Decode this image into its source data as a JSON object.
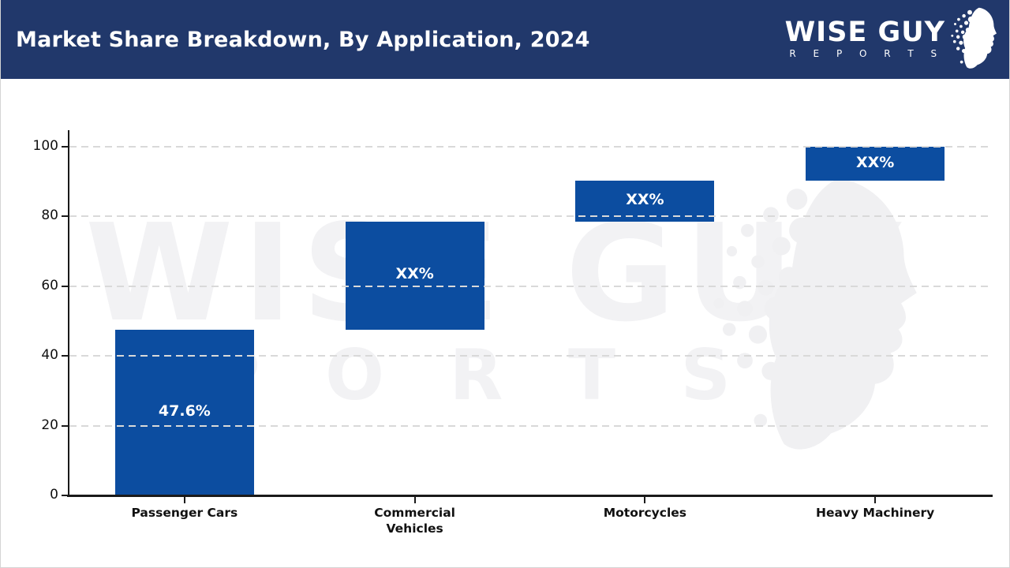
{
  "header": {
    "title": "Market Share Breakdown, By Application, 2024",
    "bg_color": "#21386b",
    "logo": {
      "line1": "WISE GUY",
      "line2": "R E P O R T S"
    }
  },
  "watermark": {
    "line1": "WISE GUY",
    "line2": "P O R T S"
  },
  "chart_data": {
    "type": "bar",
    "subtype": "waterfall",
    "title": "Market Share Breakdown, By Application, 2024",
    "categories": [
      "Passenger Cars",
      "Commercial\nVehicles",
      "Motorcycles",
      "Heavy Machinery"
    ],
    "segments": [
      {
        "category": "Passenger Cars",
        "start": 0,
        "end": 47.6,
        "label": "47.6%"
      },
      {
        "category": "Commercial Vehicles",
        "start": 47.6,
        "end": 78.5,
        "label": "XX%"
      },
      {
        "category": "Motorcycles",
        "start": 78.5,
        "end": 90.2,
        "label": "XX%"
      },
      {
        "category": "Heavy Machinery",
        "start": 90.2,
        "end": 100,
        "label": "XX%"
      }
    ],
    "xlabel": "",
    "ylabel": "",
    "ylim": [
      0,
      100
    ],
    "yticks": [
      0,
      20,
      40,
      60,
      80,
      100
    ],
    "grid": "horizontal dashed, drawn above bars",
    "legend": "none",
    "bar_color": "#0c4da0",
    "label_color": "#ffffff",
    "axis_color": "#1a1a1a",
    "grid_color": "#d9d9d9"
  }
}
